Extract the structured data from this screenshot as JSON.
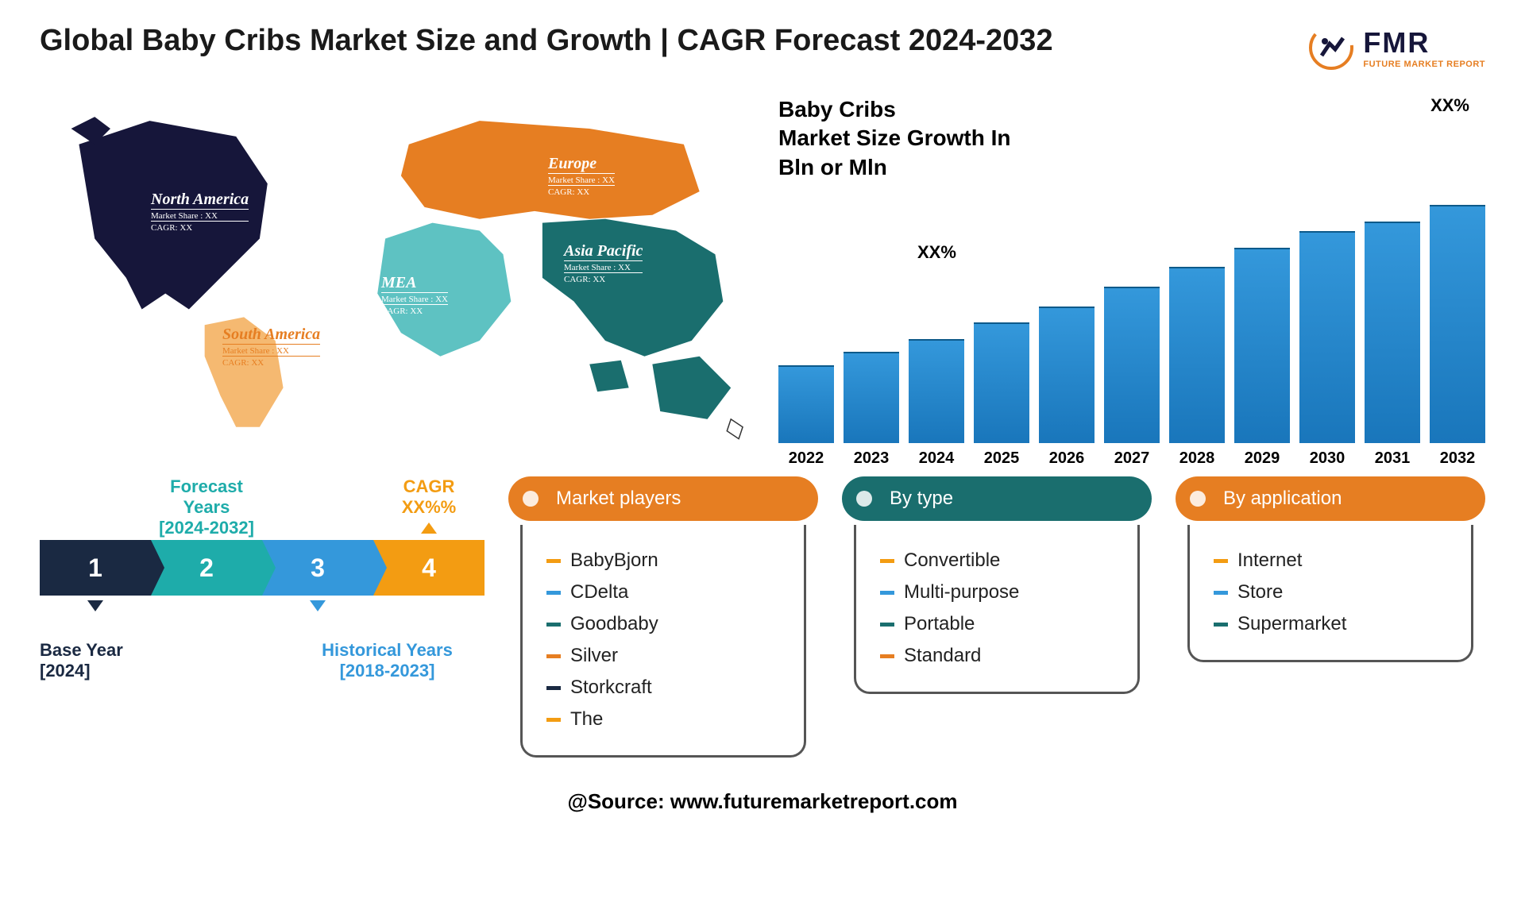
{
  "title": "Global Baby Cribs Market Size and Growth | CAGR Forecast 2024-2032",
  "logo": {
    "fmr": "FMR",
    "sub": "FUTURE MARKET REPORT"
  },
  "map": {
    "regions": [
      {
        "name": "North America",
        "color": "#16163a",
        "share": "Market Share : XX",
        "cagr": "CAGR: XX"
      },
      {
        "name": "South America",
        "color": "#f5b971",
        "share": "Market Share : XX",
        "cagr": "CAGR: XX"
      },
      {
        "name": "Europe",
        "color": "#e67e22",
        "share": "Market Share : XX",
        "cagr": "CAGR: XX"
      },
      {
        "name": "MEA",
        "color": "#5ec2c2",
        "share": "Market Share : XX",
        "cagr": "CAGR: XX"
      },
      {
        "name": "Asia Pacific",
        "color": "#1a6e6e",
        "share": "Market Share : XX",
        "cagr": "CAGR: XX"
      }
    ]
  },
  "chart": {
    "title_line1": "Baby Cribs",
    "title_line2": "Market Size Growth In",
    "title_line3": "Bln or Mln",
    "annot_2024": "XX%",
    "annot_2032": "XX%",
    "bar_color": "#3498db",
    "years": [
      "2022",
      "2023",
      "2024",
      "2025",
      "2026",
      "2027",
      "2028",
      "2029",
      "2030",
      "2031",
      "2032"
    ],
    "values": [
      120,
      140,
      160,
      185,
      210,
      240,
      270,
      300,
      325,
      340,
      365
    ]
  },
  "timeline": {
    "forecast_label": "Forecast Years",
    "forecast_range": "[2024-2032]",
    "cagr_label": "CAGR",
    "cagr_value": "XX%%",
    "base_label": "Base Year",
    "base_range": "[2024]",
    "hist_label": "Historical Years",
    "hist_range": "[2018-2023]",
    "nums": [
      "1",
      "2",
      "3",
      "4"
    ]
  },
  "categories": [
    {
      "header": "Market players",
      "headerColor": "orange",
      "items": [
        "BabyBjorn",
        "CDelta",
        "Goodbaby",
        "Silver",
        "Storkcraft",
        "The"
      ]
    },
    {
      "header": "By type",
      "headerColor": "teal",
      "items": [
        "Convertible",
        "Multi-purpose",
        "Portable",
        "Standard"
      ]
    },
    {
      "header": "By application",
      "headerColor": "orange",
      "items": [
        "Internet",
        "Store",
        "Supermarket"
      ]
    }
  ],
  "source": "@Source: www.futuremarketreport.com"
}
